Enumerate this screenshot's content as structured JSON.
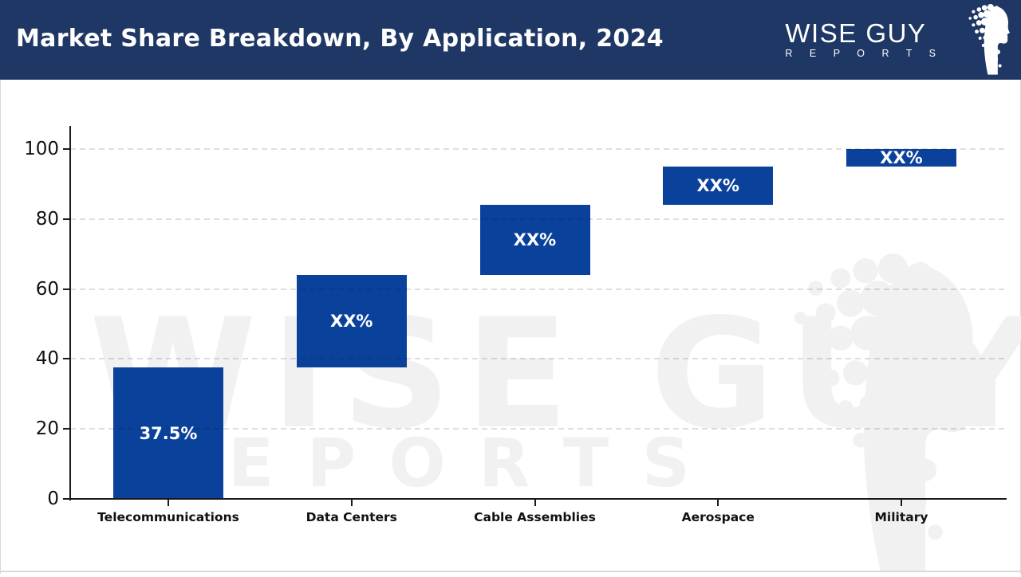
{
  "header": {
    "title": "Market Share Breakdown, By Application, 2024",
    "logo": {
      "line1": "WISE GUY",
      "line2": "R E P O R T S"
    }
  },
  "watermark": {
    "line1": "WISE GUY",
    "line2": "R E P O R T S"
  },
  "colors": {
    "header_bg": "#1F3764",
    "bar": "#0A429B",
    "bar_label": "#FFFFFF",
    "gridline": "rgba(0,0,0,0.13)",
    "axis": "#1A1A1A",
    "watermark": "#F1F1F1"
  },
  "chart_data": {
    "type": "bar",
    "subtype": "waterfall",
    "title": "Market Share Breakdown, By Application, 2024",
    "xlabel": "",
    "ylabel": "",
    "ylim": [
      0,
      105
    ],
    "yticks": [
      0,
      20,
      40,
      60,
      80,
      100
    ],
    "grid": "dashed-horizontal",
    "legend": "none",
    "categories": [
      "Telecommunications",
      "Data Centers",
      "Cable Assemblies",
      "Aerospace",
      "Military"
    ],
    "segments": [
      {
        "category": "Telecommunications",
        "start": 0,
        "end": 37.5,
        "value": 37.5,
        "label": "37.5%"
      },
      {
        "category": "Data Centers",
        "start": 37.5,
        "end": 64,
        "value": 26.5,
        "label": "XX%"
      },
      {
        "category": "Cable Assemblies",
        "start": 64,
        "end": 84,
        "value": 20,
        "label": "XX%"
      },
      {
        "category": "Aerospace",
        "start": 84,
        "end": 95,
        "value": 11,
        "label": "XX%"
      },
      {
        "category": "Military",
        "start": 95,
        "end": 100,
        "value": 5,
        "label": "XX%"
      }
    ]
  }
}
